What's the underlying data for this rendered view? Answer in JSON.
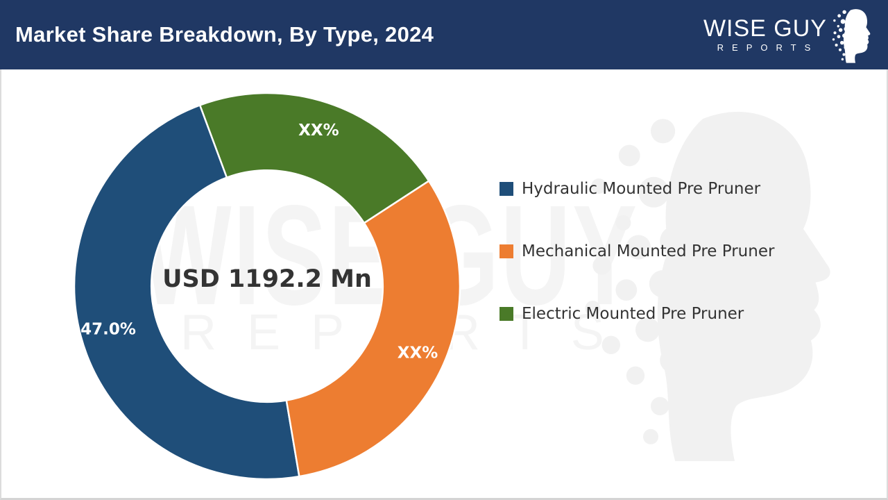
{
  "header": {
    "title": "Market Share Breakdown, By Type, 2024",
    "bg_color": "#203864",
    "logo": {
      "wordmark": "WISE GUY",
      "subtitle": "REPORTS"
    }
  },
  "watermark": {
    "wordmark": "WISE GUY",
    "subtitle": "REPORTS"
  },
  "chart_data": {
    "type": "pie",
    "variant": "donut",
    "title": "Market Share Breakdown, By Type, 2024",
    "center_label": "USD 1192.2 Mn",
    "total_value": "USD 1192.2 Mn",
    "start_angle_deg": 33,
    "direction": "counterclockwise",
    "inner_radius_ratio": 0.6,
    "slices": [
      {
        "id": "electric",
        "name": "Electric Mounted Pre Pruner",
        "label": "XX%",
        "value_pct": 21.5,
        "color": "#4A7A28"
      },
      {
        "id": "hydraulic",
        "name": "Hydraulic Mounted Pre Pruner",
        "label": "47.0%",
        "value_pct": 47.0,
        "color": "#1F4E79"
      },
      {
        "id": "mechanical",
        "name": "Mechanical Mounted Pre Pruner",
        "label": "XX%",
        "value_pct": 31.5,
        "color": "#ED7D31"
      }
    ],
    "legend": [
      {
        "label": "Hydraulic Mounted Pre Pruner",
        "color": "#1F4E79"
      },
      {
        "label": "Mechanical Mounted Pre Pruner",
        "color": "#ED7D31"
      },
      {
        "label": "Electric Mounted Pre Pruner",
        "color": "#4A7A28"
      }
    ],
    "legend_position": "right",
    "slice_label_color": "#ffffff",
    "separator_color": "#ffffff"
  }
}
